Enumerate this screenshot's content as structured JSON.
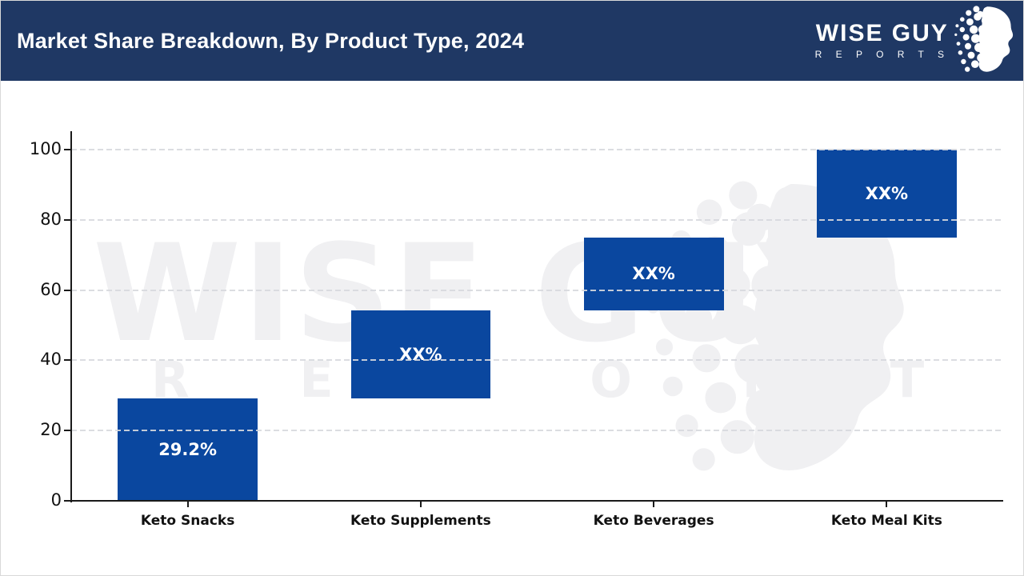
{
  "header": {
    "title": "Market Share Breakdown, By Product Type, 2024",
    "logo": {
      "wordmark": "WISE GUY",
      "subtext": "R E P O R T S"
    }
  },
  "watermark": {
    "line1": "WISE GUY",
    "line2": "R E P O R T S"
  },
  "chart_data": {
    "type": "bar",
    "subtype": "waterfall",
    "title": "Market Share Breakdown, By Product Type, 2024",
    "xlabel": "",
    "ylabel": "",
    "categories": [
      "Keto Snacks",
      "Keto Supplements",
      "Keto Beverages",
      "Keto Meal Kits"
    ],
    "segments": [
      {
        "category": "Keto Snacks",
        "start": 0,
        "end": 29.2,
        "label": "29.2%"
      },
      {
        "category": "Keto Supplements",
        "start": 29.2,
        "end": 54.2,
        "label": "XX%"
      },
      {
        "category": "Keto Beverages",
        "start": 54.2,
        "end": 75.0,
        "label": "XX%"
      },
      {
        "category": "Keto Meal Kits",
        "start": 75.0,
        "end": 100,
        "label": "XX%"
      }
    ],
    "ylim": [
      0,
      100
    ],
    "yticks": [
      0,
      20,
      40,
      60,
      80,
      100
    ],
    "grid": true,
    "gridline_style": "dashed",
    "legend": "none",
    "bar_color": "#0a479f",
    "bar_label_color": "#ffffff",
    "axis_color": "#1a1a1a",
    "grid_color": "#d7d9de",
    "header_bg_color": "#1f3864",
    "watermark_color": "#f0f0f2"
  }
}
